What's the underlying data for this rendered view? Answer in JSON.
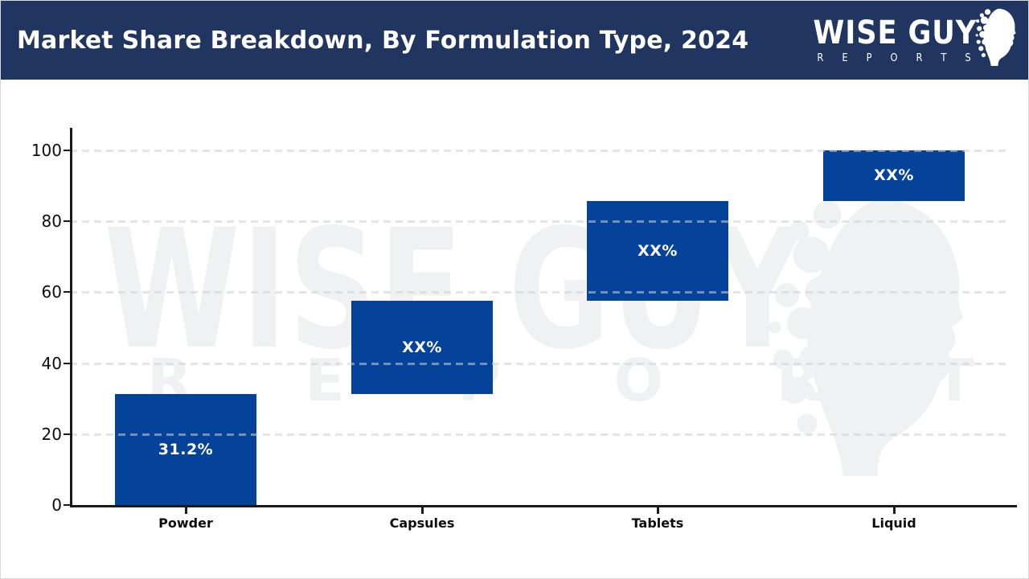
{
  "header": {
    "title": "Market Share Breakdown, By Formulation Type, 2024",
    "logo": {
      "line1": "WISE GUY",
      "line2": "R E P O R T S"
    }
  },
  "watermark": {
    "line1": "WISE GUY",
    "line2": "R E P O R T S"
  },
  "colors": {
    "header_bg": "#20355f",
    "bar": "#05429a",
    "grid": "#e0e0e0",
    "axis": "#1a1a1a",
    "watermark": "#f0f1f3",
    "page_border": "#d9d9d9",
    "bar_label": "#ffffff"
  },
  "chart_data": {
    "type": "bar",
    "subtype": "waterfall",
    "title": "Market Share Breakdown, By Formulation Type, 2024",
    "categories": [
      "Powder",
      "Capsules",
      "Tablets",
      "Liquid"
    ],
    "segments": [
      {
        "category": "Powder",
        "start": 0,
        "end": 31.2,
        "label": "31.2%"
      },
      {
        "category": "Capsules",
        "start": 31.2,
        "end": 57.5,
        "label": "XX%"
      },
      {
        "category": "Tablets",
        "start": 57.5,
        "end": 85.8,
        "label": "XX%"
      },
      {
        "category": "Liquid",
        "start": 85.8,
        "end": 100,
        "label": "XX%"
      }
    ],
    "y_ticks": [
      0,
      20,
      40,
      60,
      80,
      100
    ],
    "ylim": [
      0,
      105
    ],
    "xlabel": "",
    "ylabel": "",
    "grid": "dashed-horizontal",
    "legend": "none"
  }
}
